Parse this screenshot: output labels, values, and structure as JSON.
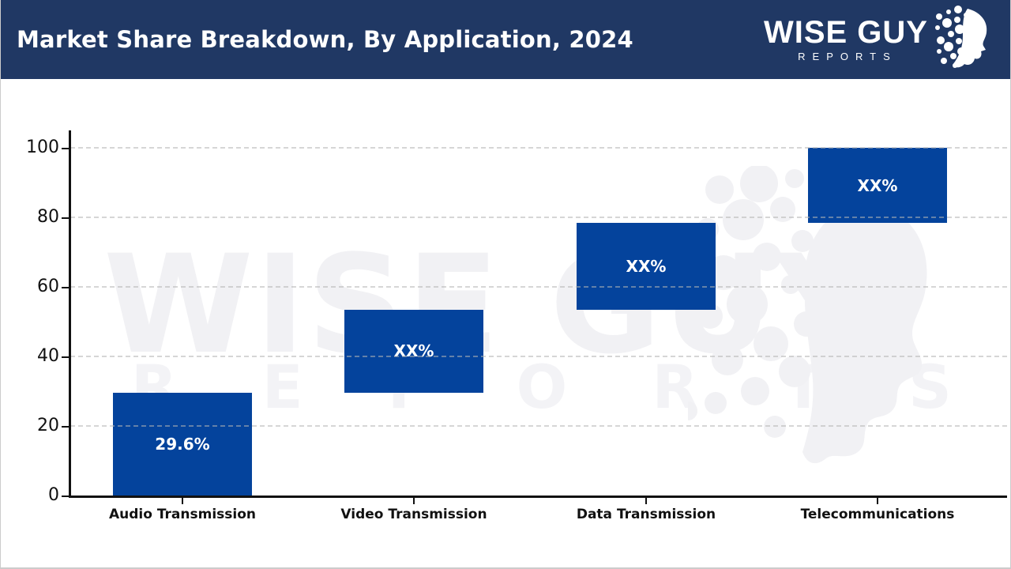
{
  "header": {
    "title": "Market Share Breakdown, By Application, 2024",
    "bg_color": "#203864",
    "logo": {
      "line1": "WISE GUY",
      "line2": "REPORTS"
    }
  },
  "watermark": {
    "line1": "WISE GUY",
    "line2": "REPORTS"
  },
  "chart_data": {
    "type": "bar",
    "subtype": "waterfall",
    "title": "Market Share Breakdown, By Application, 2024",
    "categories": [
      "Audio Transmission",
      "Video Transmission",
      "Data Transmission",
      "Telecommunications"
    ],
    "series": [
      {
        "name": "Market Share (%)",
        "segments": [
          {
            "category": "Audio Transmission",
            "start": 0,
            "end": 29.6,
            "label": "29.6%"
          },
          {
            "category": "Video Transmission",
            "start": 29.6,
            "end": 53.4,
            "label": "XX%"
          },
          {
            "category": "Data Transmission",
            "start": 53.4,
            "end": 78.4,
            "label": "XX%"
          },
          {
            "category": "Telecommunications",
            "start": 78.4,
            "end": 100,
            "label": "XX%"
          }
        ]
      }
    ],
    "xlabel": "",
    "ylabel": "",
    "ylim": [
      0,
      105
    ],
    "yticks": [
      0,
      20,
      40,
      60,
      80,
      100
    ],
    "grid": "horizontal-dashed",
    "legend": "none",
    "bar_color": "#04439c",
    "bar_label_color": "#ffffff",
    "grid_color": "#cccccc",
    "axis_color": "#111111"
  }
}
